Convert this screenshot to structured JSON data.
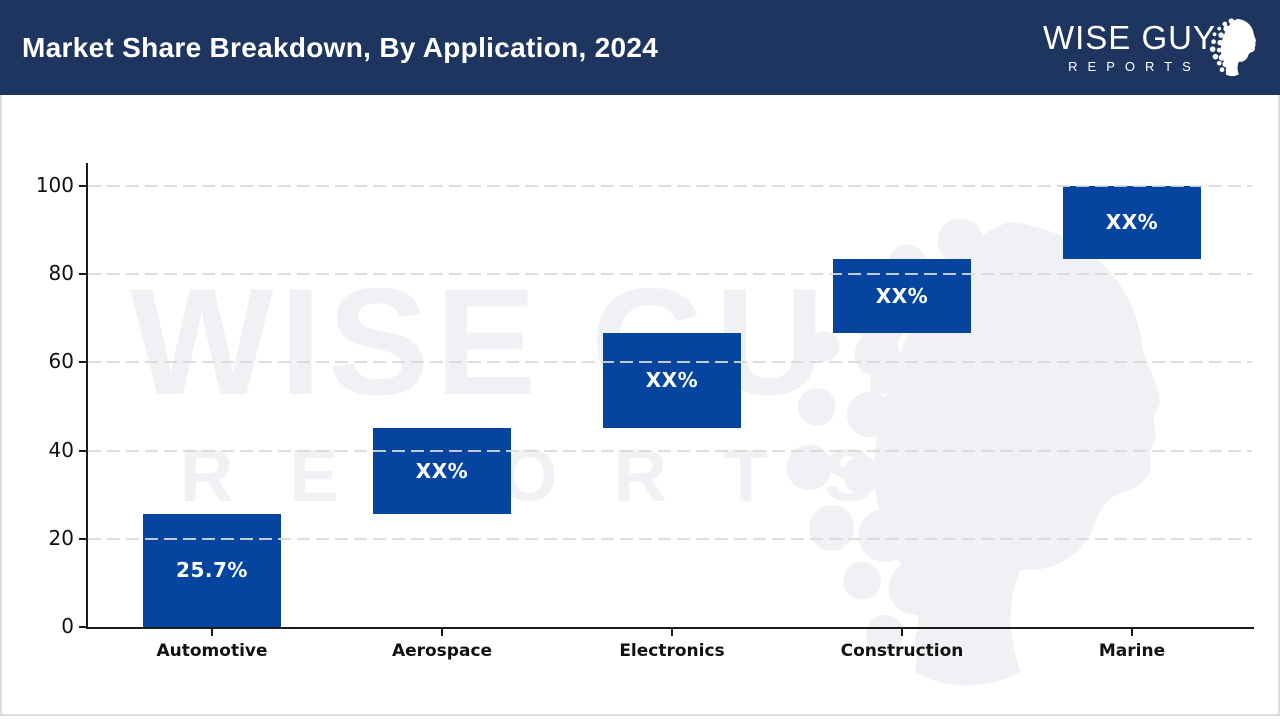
{
  "header": {
    "title": "Market Share Breakdown, By Application, 2024",
    "logo": {
      "primary": "WISE GUY",
      "secondary": "REPORTS"
    }
  },
  "watermark": {
    "primary": "WISE GUY",
    "secondary": "REPORTS"
  },
  "colors": {
    "header_bg": "#1e3560",
    "bar": "#0545a0",
    "bar_label": "#ffffff",
    "grid": "#d9d9d9",
    "axis": "#1a1a1a",
    "watermark": "#f0f1f4",
    "title_text": "#ffffff"
  },
  "chart_data": {
    "type": "bar",
    "subtype": "waterfall",
    "title": "Market Share Breakdown, By Application, 2024",
    "xlabel": "",
    "ylabel": "",
    "units": "percent",
    "categories": [
      "Automotive",
      "Aerospace",
      "Electronics",
      "Construction",
      "Marine"
    ],
    "segments": [
      {
        "category": "Automotive",
        "start": 0,
        "end": 25.7,
        "label": "25.7%"
      },
      {
        "category": "Aerospace",
        "start": 25.7,
        "end": 45.2,
        "label": "XX%"
      },
      {
        "category": "Electronics",
        "start": 45.2,
        "end": 66.6,
        "label": "XX%"
      },
      {
        "category": "Construction",
        "start": 66.6,
        "end": 83.5,
        "label": "XX%"
      },
      {
        "category": "Marine",
        "start": 83.5,
        "end": 100,
        "label": "XX%"
      }
    ],
    "yticks": [
      0,
      20,
      40,
      60,
      80,
      100
    ],
    "ylim": [
      0,
      100
    ],
    "grid": "horizontal-dashed",
    "legend": "none"
  }
}
